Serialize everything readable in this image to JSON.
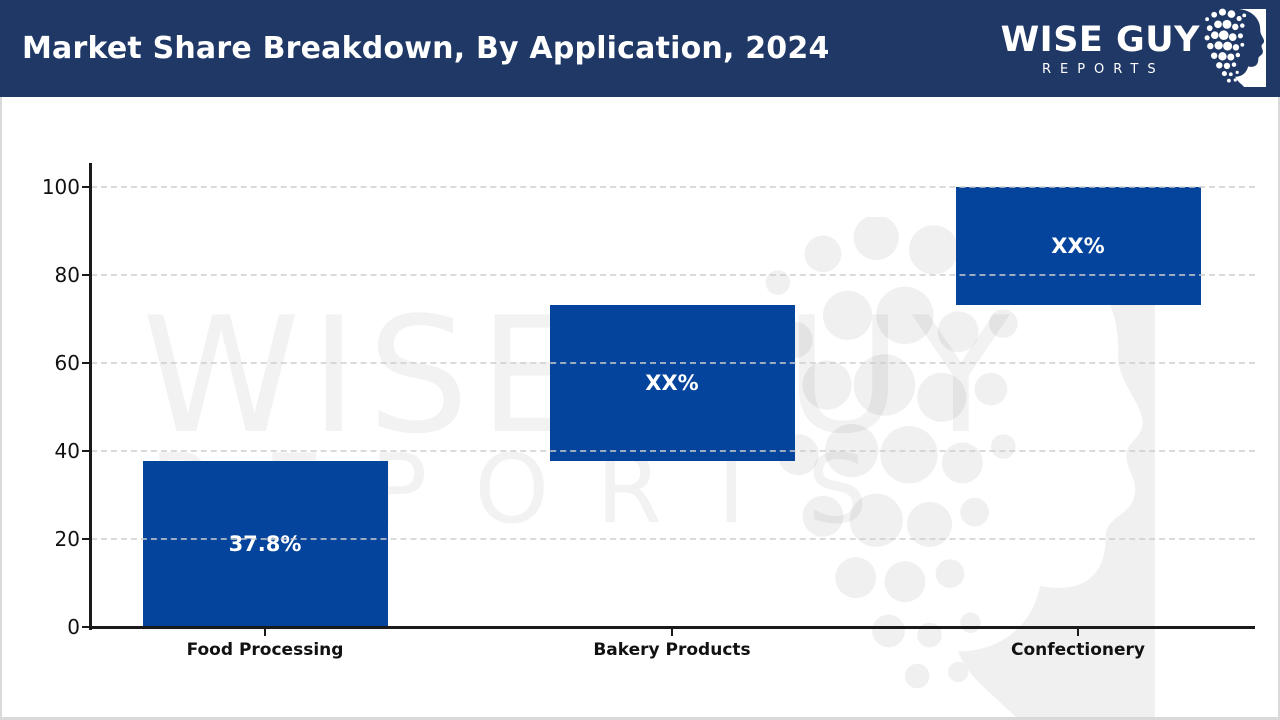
{
  "header": {
    "title": "Market Share Breakdown, By Application, 2024",
    "logo": {
      "wordmark": "WISE GUY",
      "subtext": "REPORTS",
      "face_icon": "dotted-head-profile"
    },
    "bg_color": "#1f3866"
  },
  "watermark": {
    "line1": "WISE GUY",
    "line2": "REPORTS",
    "face_icon": "dotted-head-profile"
  },
  "chart_data": {
    "type": "bar",
    "subtype": "waterfall",
    "title": "Market Share Breakdown, By Application, 2024",
    "categories": [
      "Food Processing",
      "Bakery Products",
      "Confectionery"
    ],
    "series": [
      {
        "name": "Market Share (%)",
        "segments": [
          {
            "category": "Food Processing",
            "start": 0,
            "end": 37.8,
            "label": "37.8%"
          },
          {
            "category": "Bakery Products",
            "start": 37.8,
            "end": 73.2,
            "label": "XX%"
          },
          {
            "category": "Confectionery",
            "start": 73.2,
            "end": 100,
            "label": "XX%"
          }
        ]
      }
    ],
    "xlabel": "",
    "ylabel": "",
    "ylim": [
      0,
      100
    ],
    "yticks": [
      0,
      20,
      40,
      60,
      80,
      100
    ],
    "grid": "horizontal-dashed-over-bars",
    "legend": "none",
    "bar_color": "#04449c",
    "bar_label_color": "#ffffff",
    "axis_color": "#1a1a1a",
    "tick_label_color": "#111111"
  }
}
